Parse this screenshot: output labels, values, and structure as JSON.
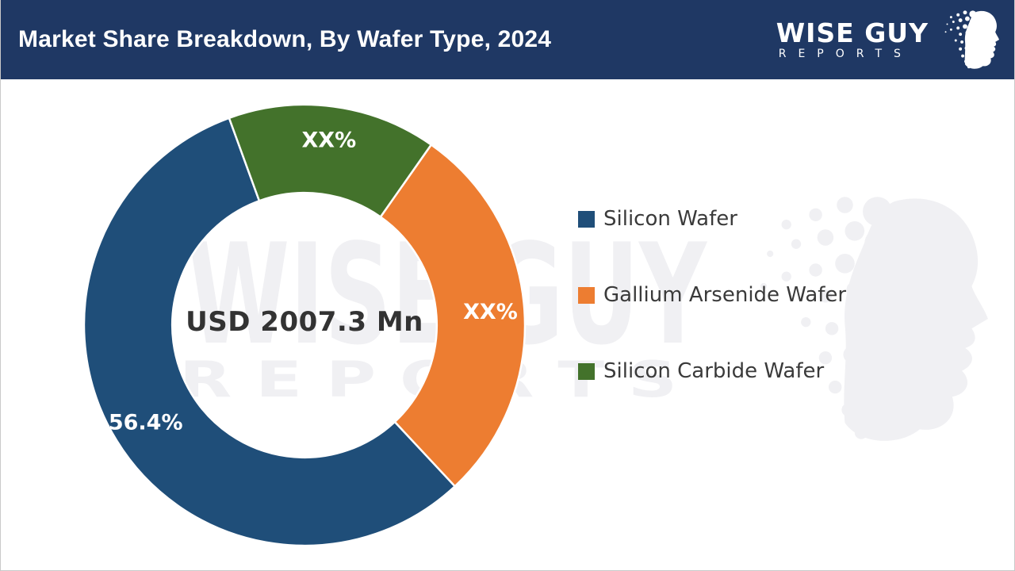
{
  "page": {
    "background": "#ffffff",
    "border_color": "#c9c9c9"
  },
  "header": {
    "background": "#1F3864",
    "title": "Market Share Breakdown, By Wafer Type, 2024",
    "title_color": "#ffffff",
    "logo": {
      "wordmark": "WISE GUY",
      "subtitle": "REPORTS",
      "face_icon": "dotted-face-profile",
      "color": "#ffffff"
    }
  },
  "watermark": {
    "wordmark": "WISE GUY",
    "subtitle": "R E P O R T S",
    "color": "#f0f0f3"
  },
  "chart_data": {
    "type": "donut",
    "title": "Market Share Breakdown, By Wafer Type, 2024",
    "center_label": "USD 2007.3 Mn",
    "hole_ratio": 0.6,
    "start_angle_deg_clockwise_from_12": -20,
    "slice_order": "counterclockwise",
    "legend_position": "right",
    "grid": false,
    "slices": [
      {
        "label": "Silicon Wafer",
        "data_label": "56.4%",
        "value_pct": 56.4,
        "estimated": false,
        "color": "#1F4E79"
      },
      {
        "label": "Gallium Arsenide Wafer",
        "data_label": "XX%",
        "value_pct": 28.3,
        "estimated": true,
        "color": "#ED7D31"
      },
      {
        "label": "Silicon Carbide Wafer",
        "data_label": "XX%",
        "value_pct": 15.3,
        "estimated": true,
        "color": "#43722B"
      }
    ],
    "slice_label_color": "#ffffff",
    "center_label_color": "#333333",
    "legend_text_color": "#3a3a3a"
  }
}
